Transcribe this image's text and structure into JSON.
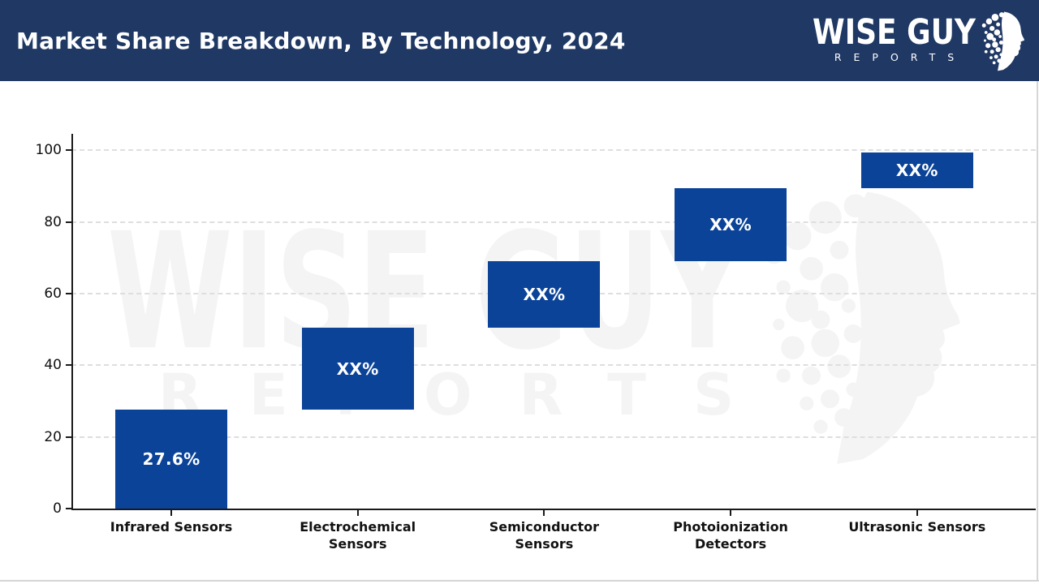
{
  "header": {
    "title": "Market Share Breakdown, By Technology, 2024",
    "logo": {
      "line1": "WISE GUY",
      "line2": "REPORTS"
    }
  },
  "watermark": {
    "line1": "WISE GUY",
    "line2": "REPORTS"
  },
  "chart_data": {
    "type": "bar",
    "variant": "floating-waterfall",
    "title": "Market Share Breakdown, By Technology, 2024",
    "categories": [
      "Infrared Sensors",
      "Electrochemical Sensors",
      "Semiconductor Sensors",
      "Photoionization Detectors",
      "Ultrasonic Sensors"
    ],
    "segments": [
      {
        "category": "Infrared Sensors",
        "start": 0,
        "end": 27.6,
        "label": "27.6%"
      },
      {
        "category": "Electrochemical Sensors",
        "start": 27.6,
        "end": 50.5,
        "label": "XX%"
      },
      {
        "category": "Semiconductor Sensors",
        "start": 50.5,
        "end": 69,
        "label": "XX%"
      },
      {
        "category": "Photoionization Detectors",
        "start": 69,
        "end": 89.5,
        "label": "XX%"
      },
      {
        "category": "Ultrasonic Sensors",
        "start": 89.5,
        "end": 99.5,
        "label": "XX%"
      }
    ],
    "yticks": [
      0,
      20,
      40,
      60,
      80,
      100
    ],
    "ylim": [
      0,
      104.6
    ],
    "xlabel": "",
    "ylabel": "",
    "grid": {
      "horizontal": true,
      "style": "dashed"
    },
    "legend": null
  },
  "palette": {
    "header_bg": "#1f3864",
    "bar_blue": "#0b4398",
    "grid_gray": "#dedede",
    "axis_black": "#1a1a1a",
    "watermark_gray": "#f4f4f4",
    "bar_label_white": "#ffffff",
    "tick_text_black": "#111111"
  }
}
